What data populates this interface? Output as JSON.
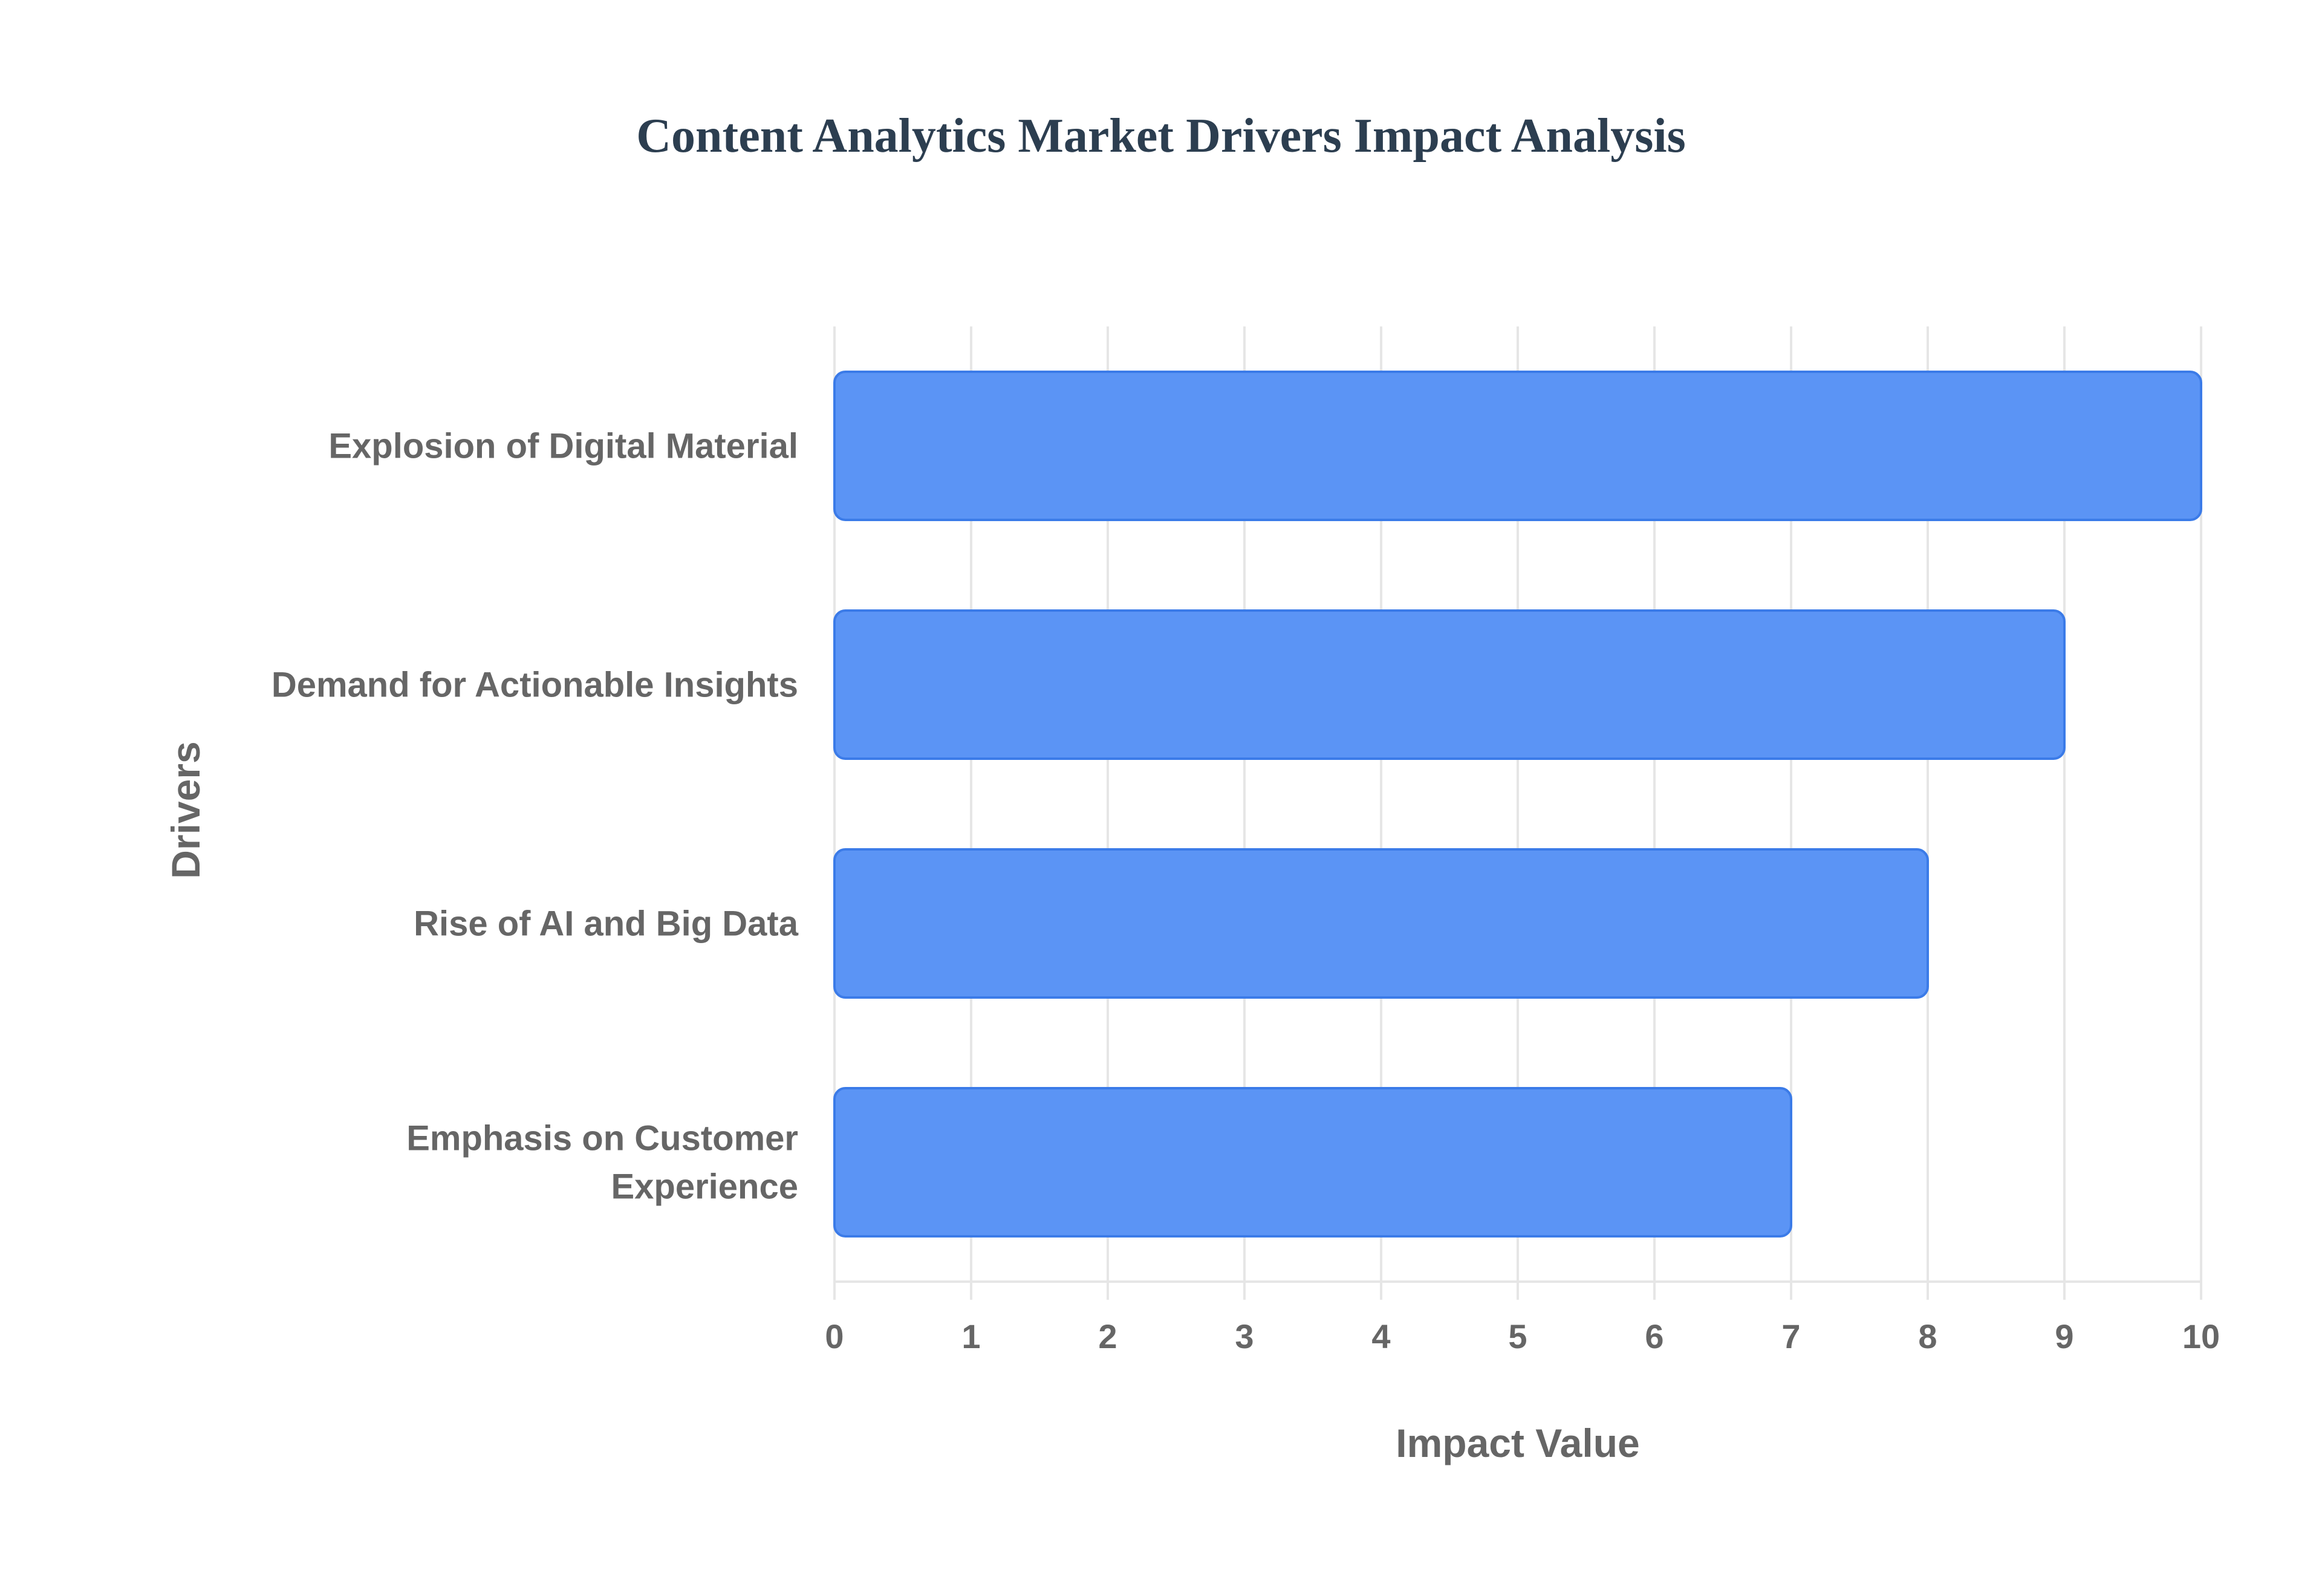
{
  "chart_data": {
    "type": "bar",
    "orientation": "horizontal",
    "title": "Content Analytics Market Drivers Impact Analysis",
    "xlabel": "Impact Value",
    "ylabel": "Drivers",
    "categories": [
      "Explosion of Digital Material",
      "Demand for Actionable Insights",
      "Rise of AI and Big Data",
      "Emphasis on Customer Experience"
    ],
    "category_display_lines": [
      [
        "Explosion of Digital Material"
      ],
      [
        "Demand for Actionable Insights"
      ],
      [
        "Rise of AI and Big Data"
      ],
      [
        "Emphasis on Customer",
        "Experience"
      ]
    ],
    "values": [
      10,
      9,
      8,
      7
    ],
    "xlim": [
      0,
      10
    ],
    "xticks": [
      "0",
      "1",
      "2",
      "3",
      "4",
      "5",
      "6",
      "7",
      "8",
      "9",
      "10"
    ],
    "grid": true,
    "legend": "none",
    "colors": {
      "bar_fill": "#5b94f5",
      "bar_stroke": "#3b7be8",
      "grid": "#e6e6e6",
      "title": "#2c3e50",
      "label": "#666666"
    }
  }
}
